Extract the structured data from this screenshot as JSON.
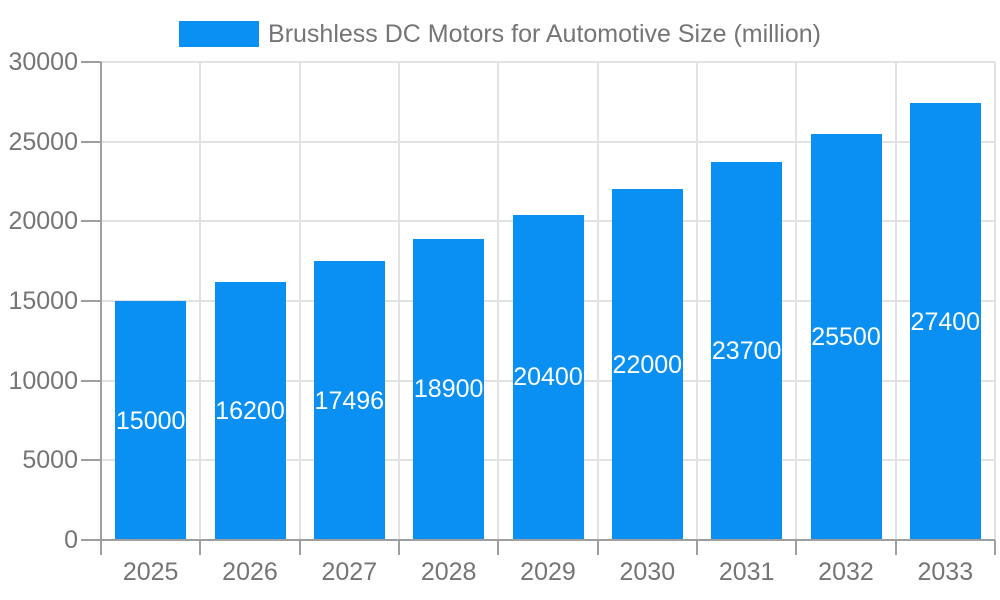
{
  "legend": {
    "label": "Brushless DC Motors for Automotive Size (million)"
  },
  "chart_data": {
    "type": "bar",
    "title": "Brushless DC Motors for Automotive Size (million)",
    "series_name": "Brushless DC Motors for Automotive Size (million)",
    "categories": [
      "2025",
      "2026",
      "2027",
      "2028",
      "2029",
      "2030",
      "2031",
      "2032",
      "2033"
    ],
    "values": [
      15000,
      16200,
      17496,
      18900,
      20400,
      22000,
      23700,
      25500,
      27400
    ],
    "value_labels": [
      "15000",
      "16200",
      "17496",
      "18900",
      "20400",
      "22000",
      "23700",
      "25500",
      "27400"
    ],
    "xlabel": "",
    "ylabel": "",
    "ylim": [
      0,
      30000
    ],
    "ytick_step": 5000,
    "ytick_labels": [
      "0",
      "5000",
      "10000",
      "15000",
      "20000",
      "25000",
      "30000"
    ],
    "grid": true,
    "legend_position": "top",
    "colors": {
      "bar": "#0a90f2",
      "value_label_text": "#ffffff",
      "axis_text": "#757575",
      "axis_line": "#9e9e9e",
      "gridline": "#e2e2e2",
      "background": "#ffffff"
    }
  }
}
